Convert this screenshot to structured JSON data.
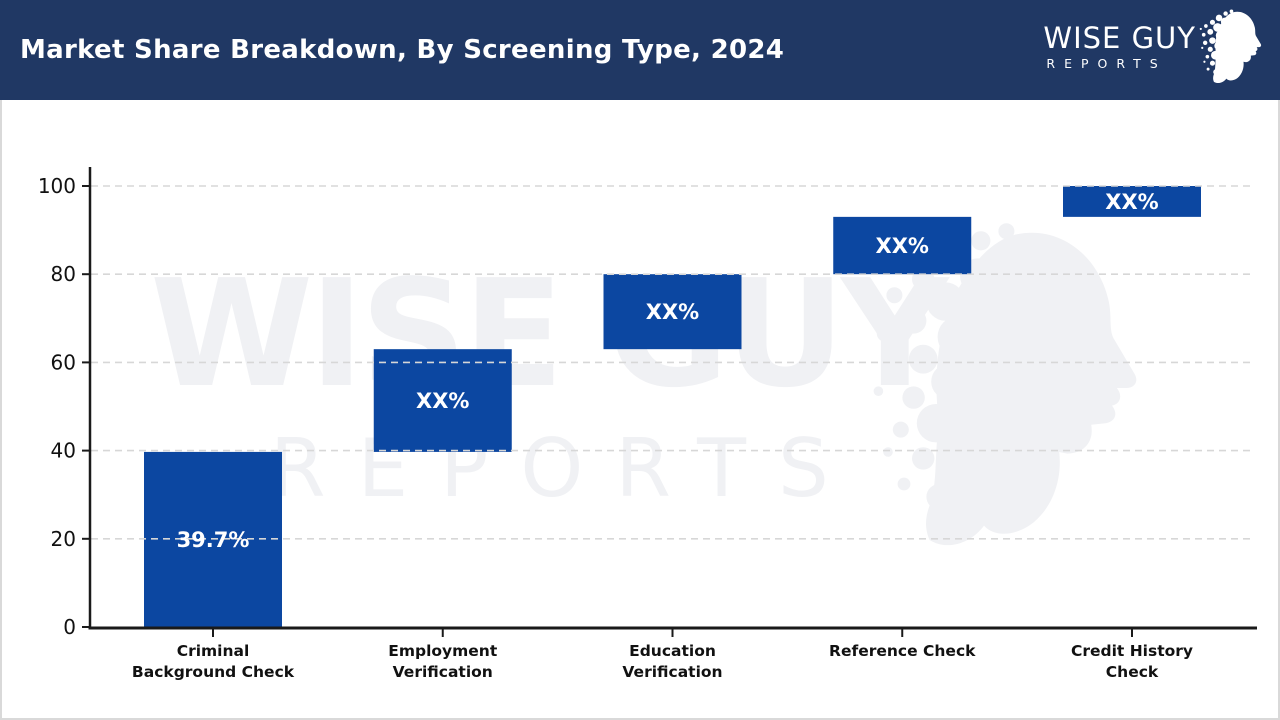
{
  "header": {
    "title": "Market Share Breakdown, By Screening Type, 2024",
    "background_color": "#203864",
    "brand": {
      "wordmark": "WISE GUY",
      "subtext": "REPORTS"
    }
  },
  "watermark": {
    "wordmark": "WISE GUY",
    "subtext": "REPORTS"
  },
  "chart_data": {
    "type": "bar",
    "subtype": "waterfall",
    "title": "Market Share Breakdown, By Screening Type, 2024",
    "xlabel": "",
    "ylabel": "",
    "ylim": [
      0,
      105
    ],
    "yticks": [
      0,
      20,
      40,
      60,
      80,
      100
    ],
    "grid": true,
    "grid_style": "dashed",
    "bar_color": "#0c47a1",
    "bar_label_color": "#ffffff",
    "axis_color": "#1a1a1a",
    "categories": [
      "Criminal Background Check",
      "Employment Verification",
      "Education Verification",
      "Reference Check",
      "Credit History Check"
    ],
    "category_lines": [
      [
        "Criminal",
        "Background Check"
      ],
      [
        "Employment",
        "Verification"
      ],
      [
        "Education",
        "Verification"
      ],
      [
        "Reference Check"
      ],
      [
        "Credit History",
        "Check"
      ]
    ],
    "segments": [
      {
        "category": "Criminal Background Check",
        "start": 0,
        "end": 39.7,
        "label": "39.7%"
      },
      {
        "category": "Employment Verification",
        "start": 39.7,
        "end": 63,
        "label": "XX%"
      },
      {
        "category": "Education Verification",
        "start": 63,
        "end": 80,
        "label": "XX%"
      },
      {
        "category": "Reference Check",
        "start": 80,
        "end": 93,
        "label": "XX%"
      },
      {
        "category": "Credit History Check",
        "start": 93,
        "end": 100,
        "label": "XX%"
      }
    ]
  }
}
